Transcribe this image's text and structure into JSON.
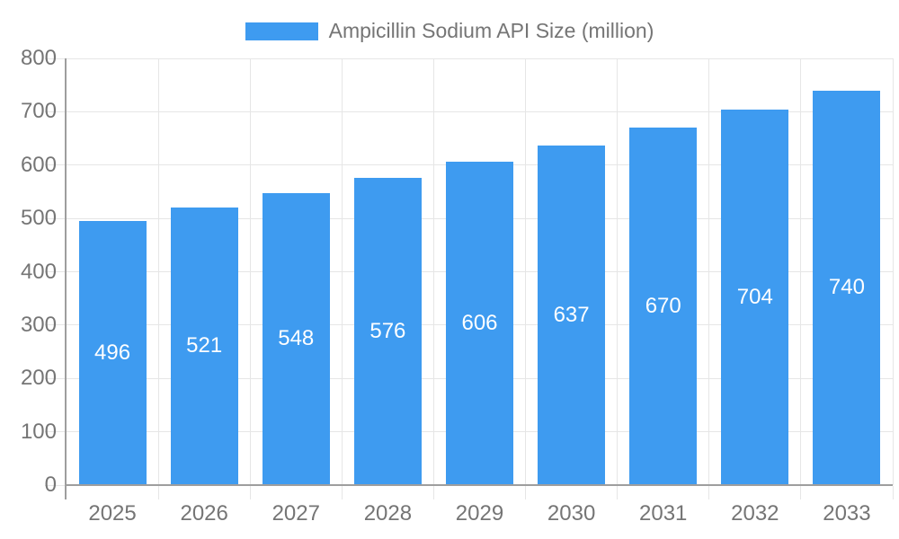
{
  "chart_data": {
    "type": "bar",
    "title": "Ampicillin Sodium API Size (million)",
    "categories": [
      "2025",
      "2026",
      "2027",
      "2028",
      "2029",
      "2030",
      "2031",
      "2032",
      "2033"
    ],
    "values": [
      496,
      521,
      548,
      576,
      606,
      637,
      670,
      704,
      740
    ],
    "xlabel": "",
    "ylabel": "",
    "ylim": [
      0,
      800
    ],
    "y_tick_step": 100,
    "y_tick_labels": [
      "0",
      "100",
      "200",
      "300",
      "400",
      "500",
      "600",
      "700",
      "800"
    ],
    "grid": true,
    "legend_position": "top-center",
    "bar_color": "#3e9bf0",
    "bar_label_color": "#ffffff",
    "axis_text_color": "#757575",
    "grid_color": "#e6e6e6",
    "axis_line_color": "#9e9e9e"
  }
}
